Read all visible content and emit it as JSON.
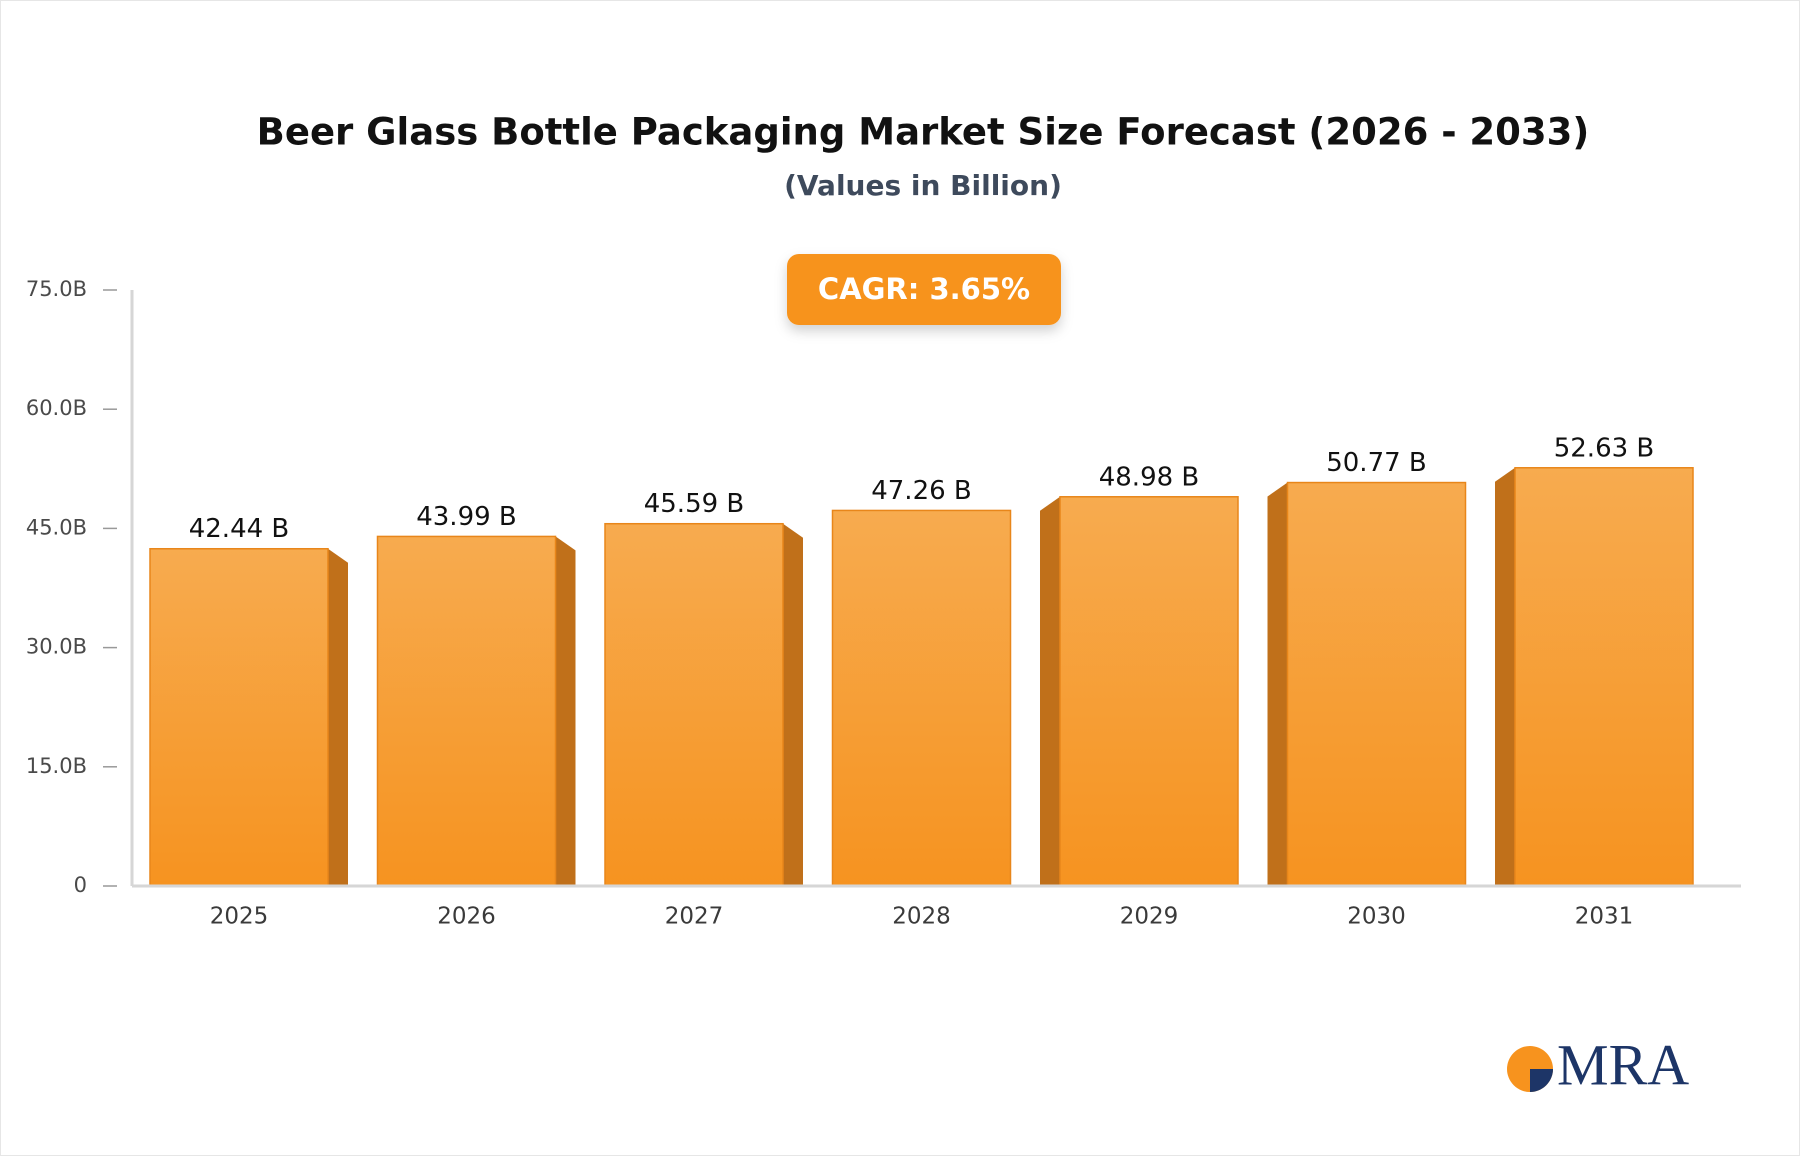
{
  "chart_data": {
    "type": "bar",
    "title": "Beer Glass Bottle Packaging Market Size Forecast (2026 - 2033)",
    "subtitle": "(Values in Billion)",
    "annotation": "CAGR: 3.65%",
    "categories": [
      "2025",
      "2026",
      "2027",
      "2028",
      "2029",
      "2030",
      "2031"
    ],
    "values": [
      42.44,
      43.99,
      45.59,
      47.26,
      48.98,
      50.77,
      52.63
    ],
    "value_labels": [
      "42.44 B",
      "43.99 B",
      "45.59 B",
      "47.26 B",
      "48.98 B",
      "50.77 B",
      "52.63 B"
    ],
    "color": "#f7a13a",
    "ylim": [
      0,
      75
    ],
    "yticks": [
      0,
      {
        "value": 15,
        "label": "15.0B"
      },
      {
        "value": 30,
        "label": "30.0B"
      },
      {
        "value": 45,
        "label": "45.0B"
      },
      {
        "value": 60,
        "label": "60.0B"
      },
      {
        "value": 75,
        "label": "75.0B"
      }
    ],
    "grid": false
  },
  "logo": "MRA"
}
